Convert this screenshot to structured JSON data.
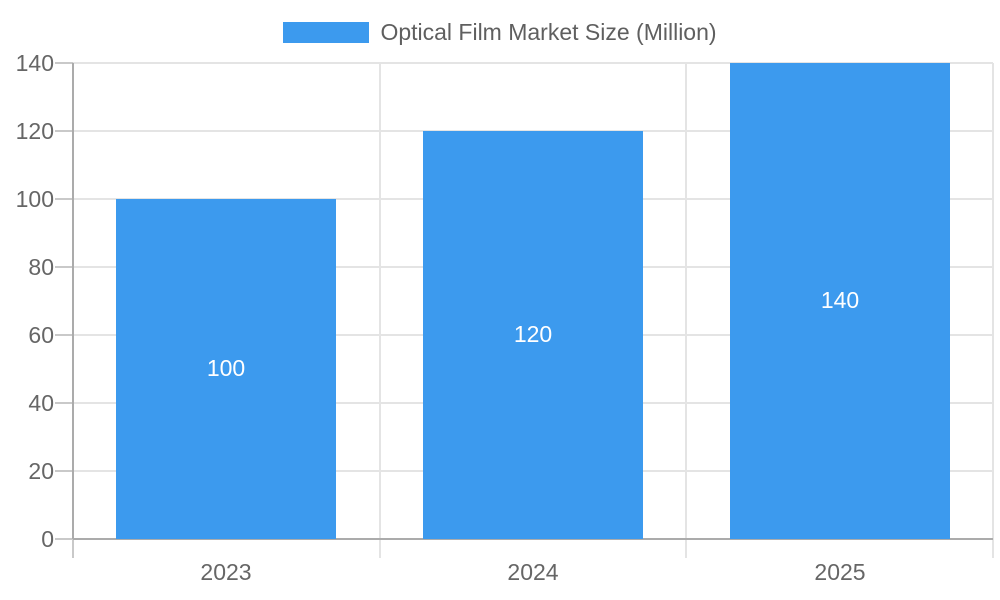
{
  "chart_data": {
    "type": "bar",
    "title": "Optical Film Market Size (Million)",
    "categories": [
      "2023",
      "2024",
      "2025"
    ],
    "series": [
      {
        "name": "Optical Film Market Size (Million)",
        "values": [
          100,
          120,
          140
        ]
      }
    ],
    "data_labels": [
      "100",
      "120",
      "140"
    ],
    "yticks": [
      "0",
      "20",
      "40",
      "60",
      "80",
      "100",
      "120",
      "140"
    ],
    "ylim": [
      0,
      140
    ],
    "xlabel": "",
    "ylabel": "",
    "grid": true,
    "legend_position": "top",
    "colors": {
      "bar": "#3C9AEE",
      "grid": "#E4E4E4",
      "axis_line": "#ABABAB",
      "tick": "#C9C9C9",
      "axis_text": "#666666",
      "legend_text": "#5F5F5F",
      "bar_label_text": "#FFFFFF",
      "background": "#FFFFFF"
    }
  }
}
